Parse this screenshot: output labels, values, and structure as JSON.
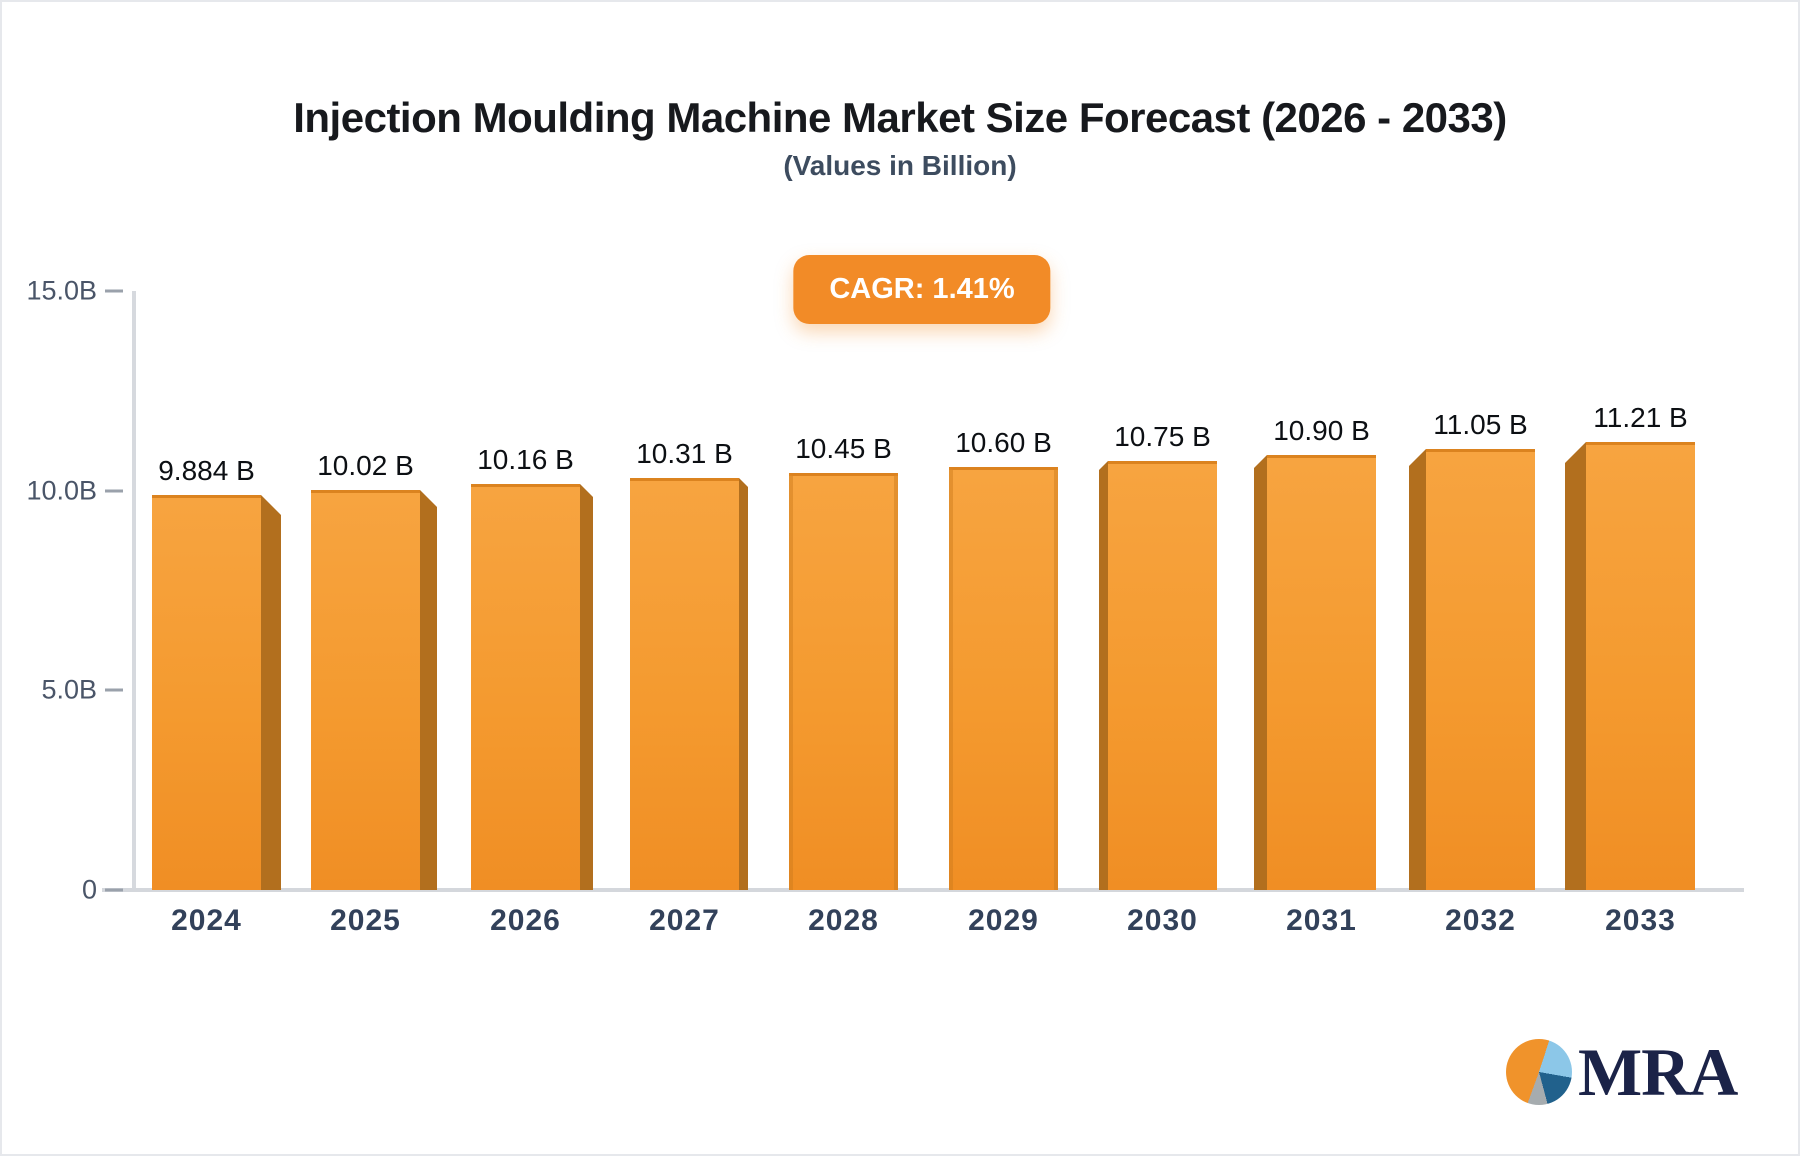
{
  "header": {
    "title": "Injection Moulding Machine Market Size Forecast (2026 - 2033)",
    "subtitle": "(Values in Billion)"
  },
  "badge": {
    "label": "CAGR: 1.41%"
  },
  "chart_data": {
    "type": "bar",
    "title": "Injection Moulding Machine Market Size Forecast (2026 - 2033)",
    "subtitle": "(Values in Billion)",
    "cagr_label": "CAGR: 1.41%",
    "categories": [
      "2024",
      "2025",
      "2026",
      "2027",
      "2028",
      "2029",
      "2030",
      "2031",
      "2032",
      "2033"
    ],
    "values": [
      9.884,
      10.02,
      10.16,
      10.31,
      10.45,
      10.6,
      10.75,
      10.9,
      11.05,
      11.21
    ],
    "value_labels": [
      "9.884 B",
      "10.02 B",
      "10.16 B",
      "10.31 B",
      "10.45 B",
      "10.60 B",
      "10.75 B",
      "10.90 B",
      "11.05 B",
      "11.21 B"
    ],
    "xlabel": "",
    "ylabel": "",
    "ylim": [
      0,
      15
    ],
    "y_ticks": [
      {
        "value": 15,
        "label": "15.0B"
      },
      {
        "value": 10,
        "label": "10.0B"
      },
      {
        "value": 5,
        "label": "5.0B"
      },
      {
        "value": 0,
        "label": "0"
      }
    ],
    "grid": false,
    "legend": "none",
    "bar_color": "#f49a2f",
    "bar_color_light": "#f7a440",
    "bar_color_deep": "#f08e24",
    "bar_side_color": "#b26f1e",
    "accent_color": "#f28b27"
  },
  "logo": {
    "text": "MRA"
  }
}
